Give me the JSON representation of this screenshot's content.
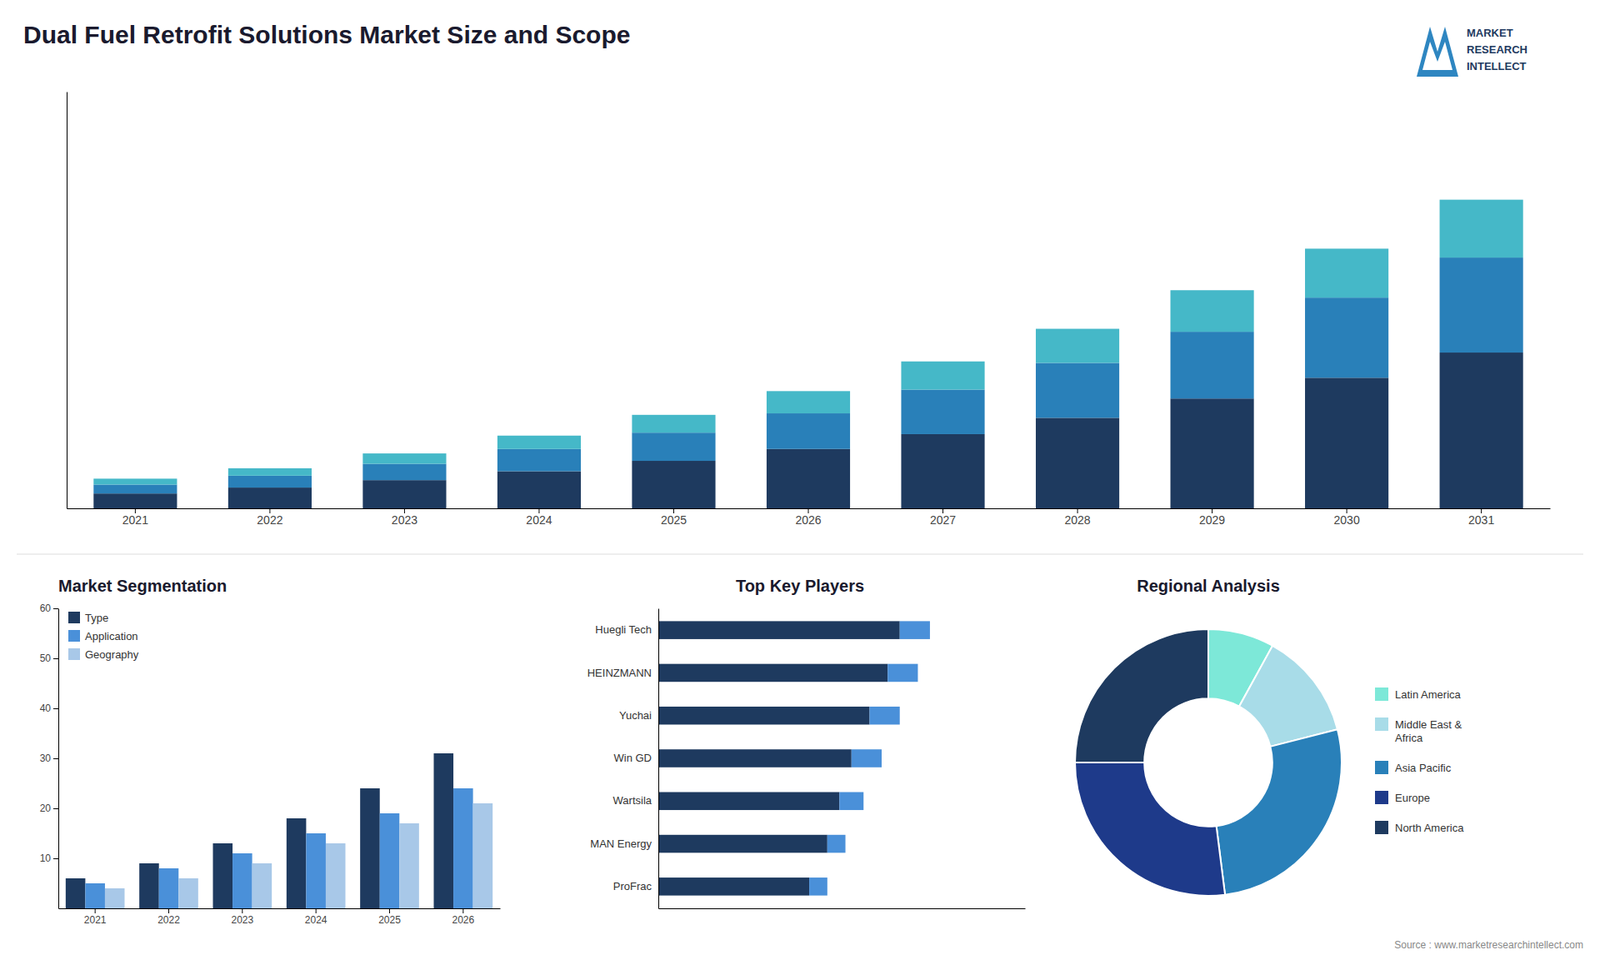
{
  "chart_data": [
    {
      "type": "bar",
      "title": "Dual Fuel Retrofit Solutions Market Size and Scope",
      "stacked": true,
      "categories": [
        "2021",
        "2022",
        "2023",
        "2024",
        "2025",
        "2026",
        "2027",
        "2028",
        "2029",
        "2030",
        "2031"
      ],
      "series": [
        {
          "color": "#1e3a5f",
          "values": [
            1.0,
            1.4,
            1.9,
            2.5,
            3.2,
            4.0,
            5.0,
            6.1,
            7.4,
            8.8,
            10.5
          ]
        },
        {
          "color": "#2980b9",
          "values": [
            0.6,
            0.8,
            1.1,
            1.5,
            1.9,
            2.4,
            3.0,
            3.7,
            4.5,
            5.4,
            6.4
          ]
        },
        {
          "color": "#45b8c8",
          "values": [
            0.4,
            0.5,
            0.7,
            0.9,
            1.2,
            1.5,
            1.9,
            2.3,
            2.8,
            3.3,
            3.9
          ]
        }
      ],
      "ylim": [
        0,
        28.08
      ],
      "tick_labels": "x",
      "grid": false,
      "annotations": [
        "MARKET",
        "RESEARCH",
        "INTELLECT",
        "Source : www.marketresearchintellect.com"
      ]
    },
    {
      "type": "bar",
      "title": "Market Segmentation",
      "categories": [
        "2021",
        "2022",
        "2023",
        "2024",
        "2025",
        "2026"
      ],
      "series": [
        {
          "name": "Type",
          "color": "#1e3a5f",
          "values": [
            6,
            9,
            13,
            18,
            24,
            31
          ]
        },
        {
          "name": "Application",
          "color": "#4a90d9",
          "values": [
            5,
            8,
            11,
            15,
            19,
            24
          ]
        },
        {
          "name": "Geography",
          "color": "#a8c8e8",
          "values": [
            4,
            6,
            9,
            13,
            17,
            21
          ]
        }
      ],
      "ylim": [
        0,
        60
      ],
      "yticks": [
        10,
        20,
        30,
        40,
        50,
        60
      ],
      "legend": "upper left",
      "grid": false
    },
    {
      "type": "bar",
      "title": "Top Key Players",
      "orientation": "horizontal",
      "stacked": true,
      "categories": [
        "Huegli Tech",
        "HEINZMANN",
        "Yuchai",
        "Win GD",
        "Wartsila",
        "MAN Energy",
        "ProFrac"
      ],
      "series": [
        {
          "color": "#1e3a5f",
          "values": [
            4.0,
            3.8,
            3.5,
            3.2,
            3.0,
            2.8,
            2.5
          ]
        },
        {
          "color": "#4a90d9",
          "values": [
            0.5,
            0.5,
            0.5,
            0.5,
            0.4,
            0.3,
            0.3
          ]
        }
      ],
      "xlim": [
        0,
        6.075
      ],
      "tick_labels": "y",
      "grid": false
    },
    {
      "type": "pie",
      "title": "Regional Analysis",
      "categories": [
        "Latin America",
        "Middle East &\nAfrica",
        "Asia Pacific",
        "Europe",
        "North America"
      ],
      "values": [
        8,
        13,
        27,
        27,
        25
      ],
      "colors": [
        "#7de8d8",
        "#a8dce8",
        "#2980b9",
        "#1e3a8a",
        "#1e3a5f"
      ],
      "legend": "right"
    }
  ]
}
